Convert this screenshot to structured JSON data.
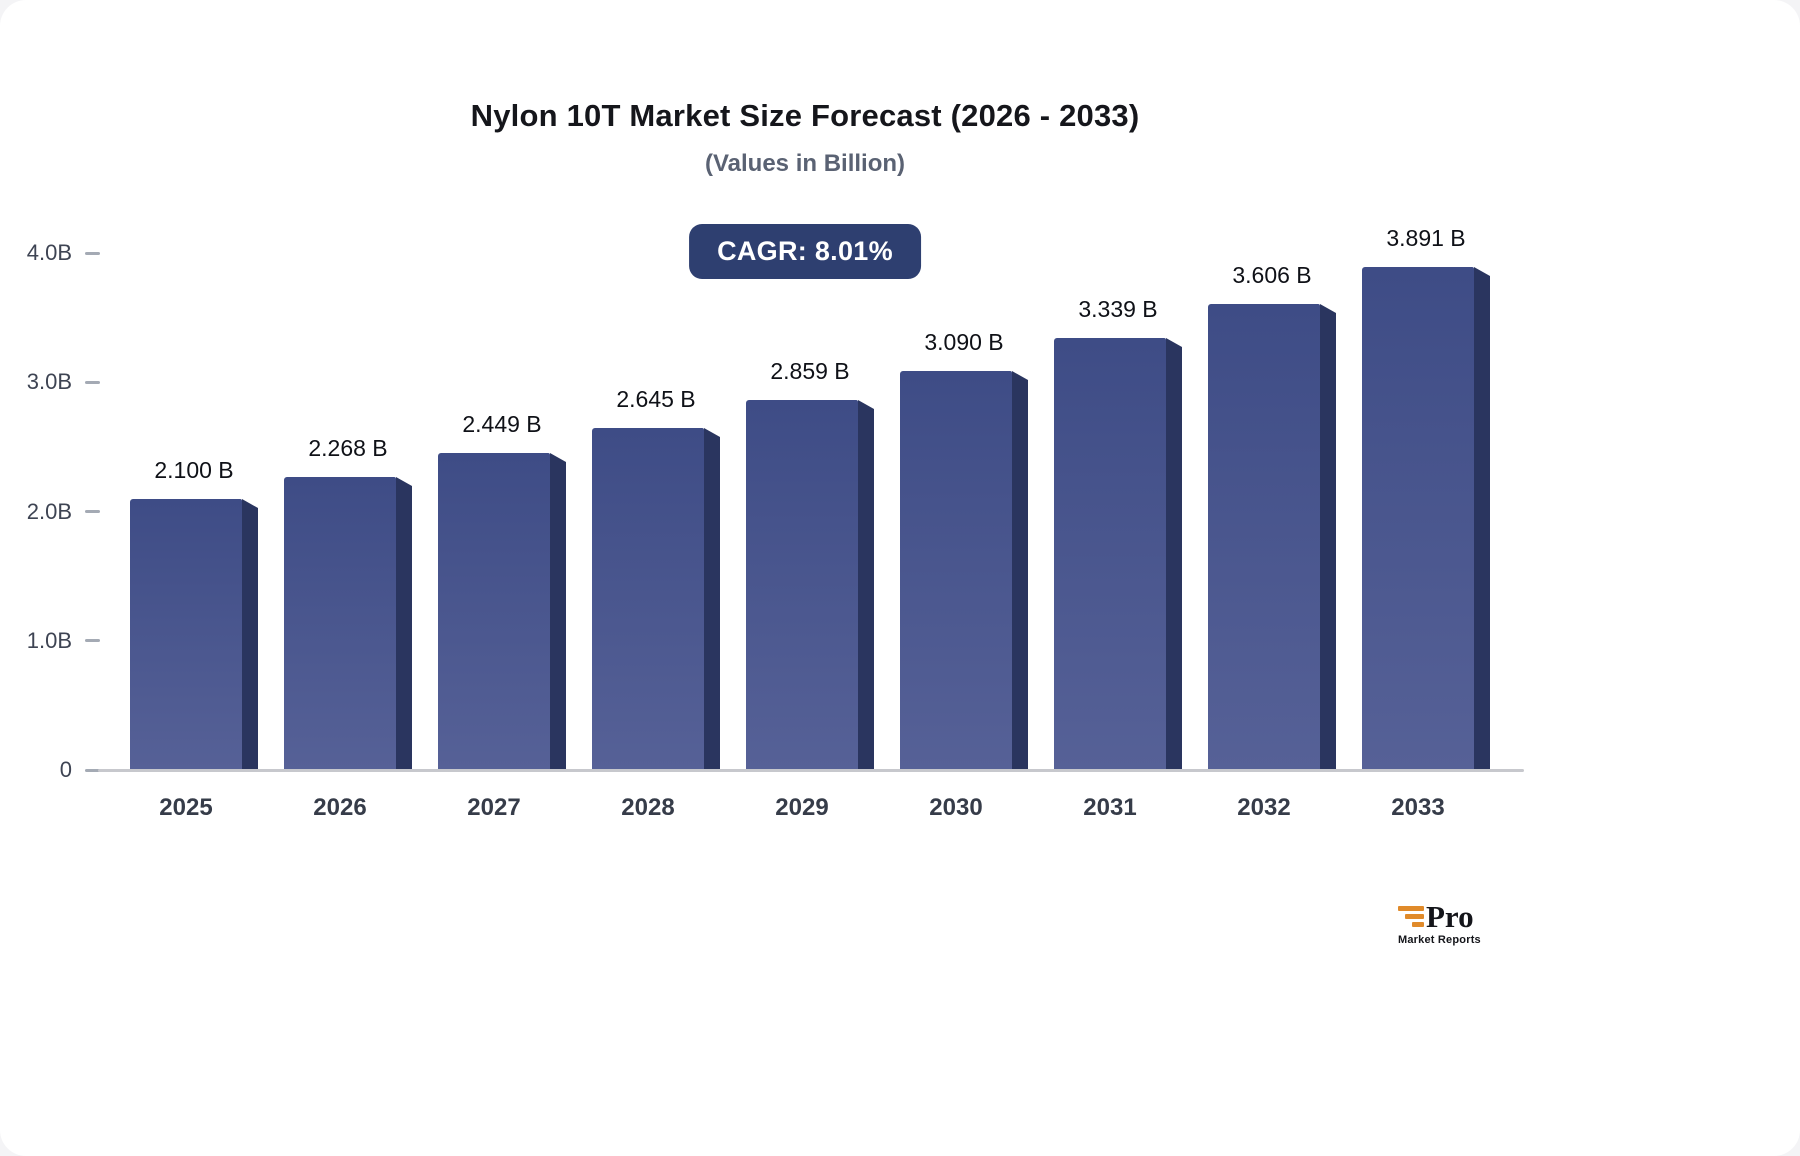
{
  "chart_data": {
    "type": "bar",
    "title": "Nylon 10T Market Size Forecast (2026 - 2033)",
    "subtitle": "(Values in Billion)",
    "cagr_label": "CAGR: 8.01%",
    "categories": [
      "2025",
      "2026",
      "2027",
      "2028",
      "2029",
      "2030",
      "2031",
      "2032",
      "2033"
    ],
    "values": [
      2.1,
      2.268,
      2.449,
      2.645,
      2.859,
      3.09,
      3.339,
      3.606,
      3.891
    ],
    "value_labels": [
      "2.100 B",
      "2.268 B",
      "2.449 B",
      "2.645 B",
      "2.859 B",
      "3.090 B",
      "3.339 B",
      "3.606 B",
      "3.891 B"
    ],
    "xlabel": "",
    "ylabel": "",
    "ylim": [
      0,
      4.0
    ],
    "yticks": [
      {
        "value": 4.0,
        "label": "4.0B"
      },
      {
        "value": 3.0,
        "label": "3.0B"
      },
      {
        "value": 2.0,
        "label": "2.0B"
      },
      {
        "value": 1.0,
        "label": "1.0B"
      },
      {
        "value": 0,
        "label": "0"
      }
    ],
    "grid": false,
    "legend": "none",
    "bar_style": "3d-extruded"
  },
  "colors": {
    "bar_front_top": "#3e4c86",
    "bar_front_bottom": "#566197",
    "bar_side": "#2a355f",
    "badge_bg": "#2e3f70",
    "accent_orange": "#e08a2a",
    "axis_line": "#c7c8cd"
  },
  "logo": {
    "brand": "Pro",
    "tagline": "Market Reports"
  }
}
